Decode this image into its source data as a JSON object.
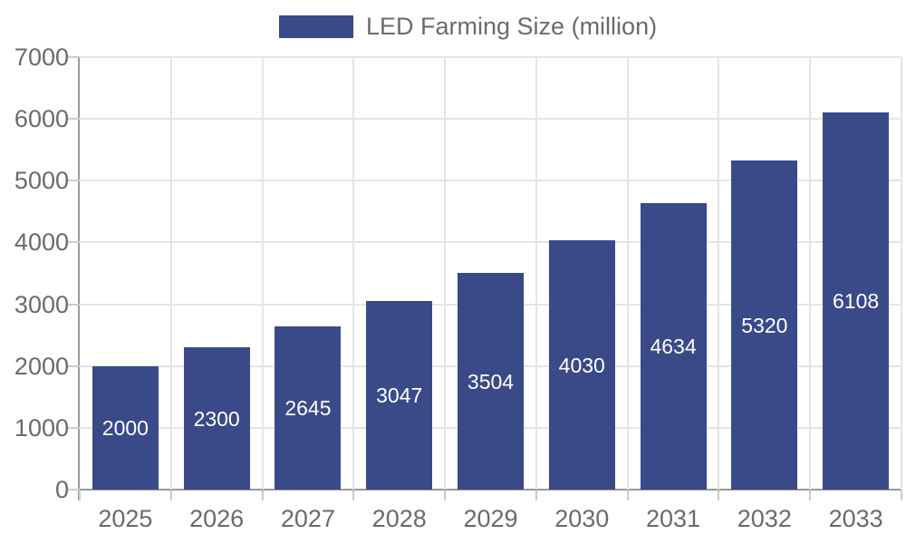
{
  "chart_data": {
    "type": "bar",
    "title": "LED Farming Size (million)",
    "legend": {
      "label": "LED Farming Size (million)",
      "position": "top"
    },
    "categories": [
      "2025",
      "2026",
      "2027",
      "2028",
      "2029",
      "2030",
      "2031",
      "2032",
      "2033"
    ],
    "values": [
      2000,
      2300,
      2645,
      3047,
      3504,
      4030,
      4634,
      5320,
      6108
    ],
    "xlabel": "",
    "ylabel": "",
    "ylim": [
      0,
      7000
    ],
    "yticks": [
      0,
      1000,
      2000,
      3000,
      4000,
      5000,
      6000,
      7000
    ],
    "grid": true,
    "value_labels": "inside-center",
    "colors": {
      "bar": "#3a4a88",
      "value_label": "#ffffff",
      "axis_text": "#6b6b6b",
      "grid_line": "#e4e4e9",
      "axis_line": "#999999",
      "tick": "#cccccc"
    }
  }
}
